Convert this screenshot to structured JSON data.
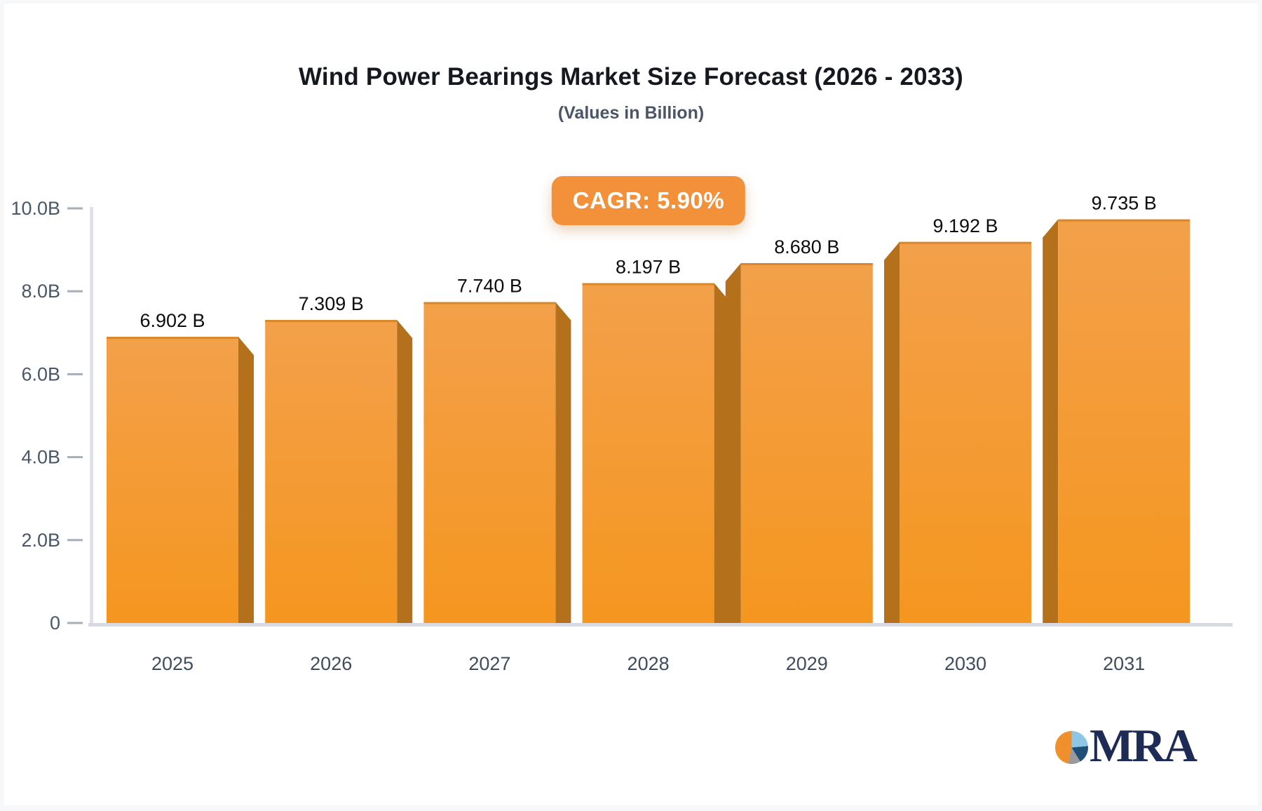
{
  "page": {
    "background": "#F7F8FA",
    "card_background": "#FFFFFF"
  },
  "chart_data": {
    "type": "bar",
    "title": "Wind Power Bearings Market Size Forecast (2026 - 2033)",
    "subtitle": "(Values in Billion)",
    "categories": [
      "2025",
      "2026",
      "2027",
      "2028",
      "2029",
      "2030",
      "2031"
    ],
    "values": [
      6.902,
      7.309,
      7.74,
      8.197,
      8.68,
      9.192,
      9.735
    ],
    "value_labels": [
      "6.902 B",
      "7.309 B",
      "7.740 B",
      "8.197 B",
      "8.680 B",
      "9.192 B",
      "9.735 B"
    ],
    "y_ticks": [
      {
        "value": 0,
        "label": "0"
      },
      {
        "value": 2,
        "label": "2.0B"
      },
      {
        "value": 4,
        "label": "4.0B"
      },
      {
        "value": 6,
        "label": "6.0B"
      },
      {
        "value": 8,
        "label": "8.0B"
      },
      {
        "value": 10,
        "label": "10.0B"
      }
    ],
    "ylim": [
      0,
      10
    ],
    "grid": false,
    "legend": "none",
    "badge": {
      "label": "CAGR: 5.90%",
      "background": "#F2913A",
      "text_color": "#FFFFFF"
    },
    "colors": {
      "bar_face_top": "#F3A04B",
      "bar_face_bottom": "#F5961F",
      "bar_side": "#B4701B",
      "bar_top_edge": "#DB862A",
      "axis_line": "#E0E2E7",
      "baseline": "#D7DAE0",
      "tick": "#A8AEB8",
      "tick_label": "#4A5768",
      "category_label": "#3F4C5E",
      "value_label": "#0D0D0D"
    }
  },
  "logo": {
    "text": "MRA",
    "text_color": "#1D2B55",
    "pie_slices": [
      {
        "name": "light-blue",
        "color": "#8EC7E6",
        "from": 0,
        "to": 85
      },
      {
        "name": "navy",
        "color": "#1F4E79",
        "from": 85,
        "to": 148
      },
      {
        "name": "gray",
        "color": "#9A9A9C",
        "from": 148,
        "to": 192
      },
      {
        "name": "orange",
        "color": "#F0902D",
        "from": 192,
        "to": 360
      }
    ]
  }
}
